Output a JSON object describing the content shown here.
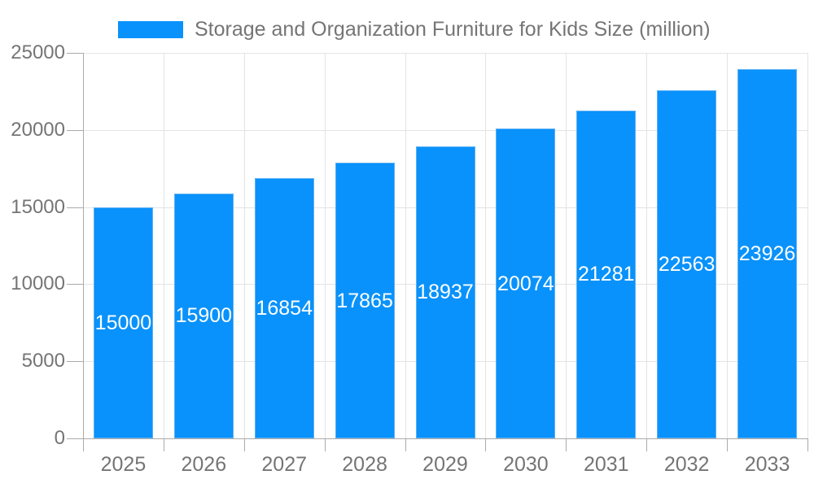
{
  "legend": {
    "label": "Storage and Organization Furniture for Kids Size (million)"
  },
  "colors": {
    "bar": "#0992fb",
    "bar_border": "#5fb0f4",
    "text": "#757575",
    "grid": "#e4e4e4",
    "axis": "#ababab",
    "value_label": "#ffffff",
    "background": "#ffffff"
  },
  "chart_data": {
    "type": "bar",
    "title": "Storage and Organization Furniture for Kids Size (million)",
    "categories": [
      "2025",
      "2026",
      "2027",
      "2028",
      "2029",
      "2030",
      "2031",
      "2032",
      "2033"
    ],
    "values": [
      15000,
      15900,
      16854,
      17865,
      18937,
      20074,
      21281,
      22563,
      23926
    ],
    "xlabel": "",
    "ylabel": "",
    "ylim": [
      0,
      25000
    ],
    "yticks": [
      0,
      5000,
      10000,
      15000,
      20000,
      25000
    ],
    "grid": true,
    "legend_position": "top",
    "value_labels": "inside-middle"
  }
}
